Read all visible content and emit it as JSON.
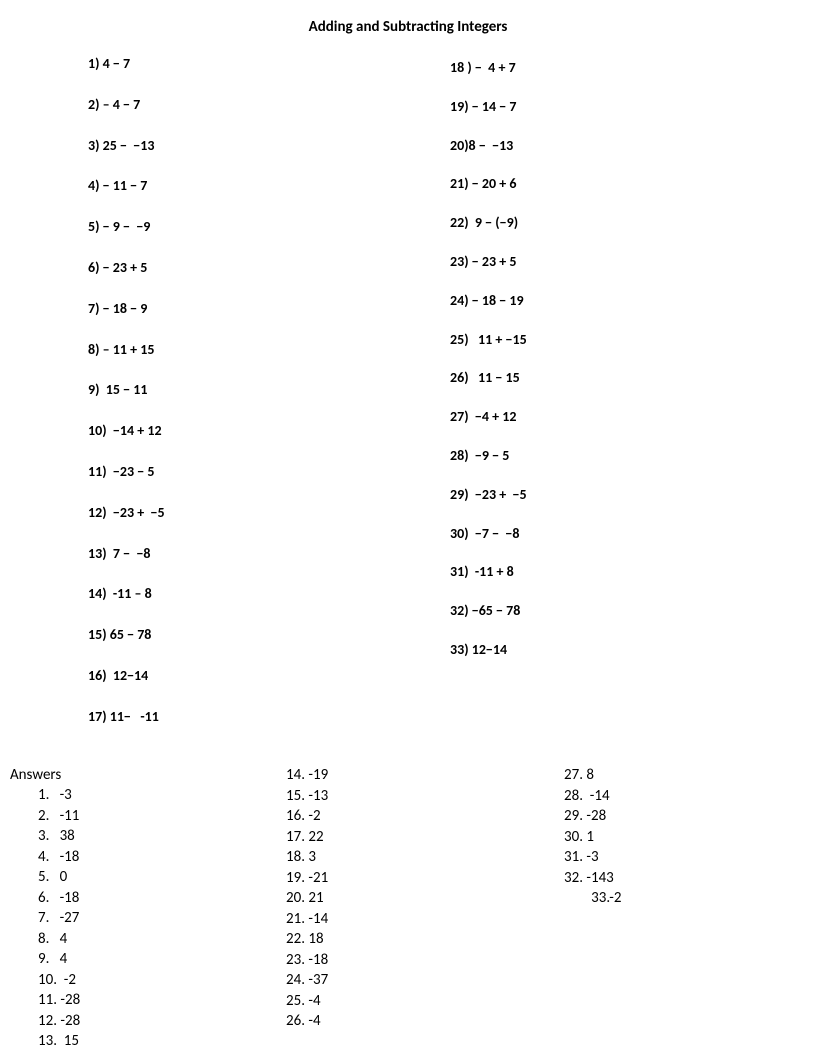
{
  "title": "Adding and Subtracting Integers",
  "colors": {
    "text": "#000000",
    "bg": "#ffffff"
  },
  "typography": {
    "title_size": 15,
    "question_size": 14,
    "answer_size": 15,
    "bold_questions": true
  },
  "questions_left": [
    "1) 4 − 7",
    "2) – 4 − 7",
    "3) 25 −  −13",
    "4) − 11 − 7",
    "5) − 9 −  −9",
    "6) − 23 + 5",
    "7) − 18 − 9",
    "8) – 11 + 15",
    "9)  15 − 11",
    "10)  −14 + 12",
    "11)  −23 − 5",
    "12)  −23 +  −5",
    "13)  7 −  −8",
    "14)  -11 – 8",
    "15) 65 − 78",
    "16)  12−14",
    "17) 11−   -11"
  ],
  "questions_right": [
    "18 ) −  4 + 7",
    "19) − 14 − 7",
    "20)8 −  −13",
    "21) − 20 + 6",
    "22)  9 − (−9)",
    "23) − 23 + 5",
    "24) − 18 − 19",
    "25)   11 + −15",
    "26)   11 − 15",
    "27)  −4 + 12",
    "28)  −9 − 5",
    "29)  −23 +  −5",
    "30)  −7 −  −8",
    "31)  -11 + 8",
    "32) −65 − 78",
    "33) 12−14"
  ],
  "answers_label": "Answers",
  "answers_col1": [
    "1.   -3",
    "2.   -11",
    "3.   38",
    "4.   -18",
    "5.   0",
    "6.   -18",
    "7.   -27",
    "8.   4",
    "9.   4",
    "10.  -2",
    "11. -28",
    "12. -28",
    "13.  15"
  ],
  "answers_col2": [
    "14. -19",
    "15. -13",
    "16. -2",
    "17. 22",
    "18. 3",
    "19. -21",
    "20. 21",
    "21. -14",
    "22. 18",
    "23. -18",
    "24. -37",
    "25. -4",
    "26. -4"
  ],
  "answers_col3": [
    "27. 8",
    "28.  -14",
    "29. -28",
    "30. 1",
    "31. -3",
    "32. -143",
    "        33.-2"
  ]
}
